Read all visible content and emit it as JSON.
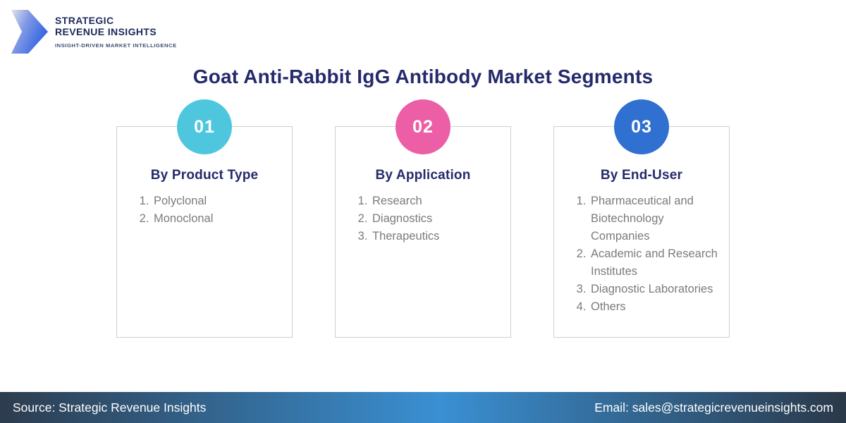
{
  "logo": {
    "line1": "STRATEGIC",
    "line2": "REVENUE INSIGHTS",
    "tagline": "INSIGHT-DRIVEN MARKET INTELLIGENCE"
  },
  "title": "Goat Anti-Rabbit IgG Antibody Market Segments",
  "cards": [
    {
      "number": "01",
      "accent": "#4ec7de",
      "heading": "By Product Type",
      "items": [
        "Polyclonal",
        "Monoclonal"
      ]
    },
    {
      "number": "02",
      "accent": "#ec5fa6",
      "heading": "By Application",
      "items": [
        "Research",
        "Diagnostics",
        "Therapeutics"
      ]
    },
    {
      "number": "03",
      "accent": "#2f70d1",
      "heading": "By End-User",
      "items": [
        "Pharmaceutical and Biotechnology Companies",
        "Academic and Research Institutes",
        "Diagnostic Laboratories",
        "Others"
      ]
    }
  ],
  "footer": {
    "source": "Source: Strategic Revenue Insights",
    "email": "Email: sales@strategicrevenueinsights.com"
  },
  "colors": {
    "title_navy": "#252a6b",
    "list_gray": "#7b7b7b",
    "footer_dark": "#2d3c4e",
    "footer_blue": "#3a90d3",
    "logo_navy": "#1e2a5a"
  }
}
